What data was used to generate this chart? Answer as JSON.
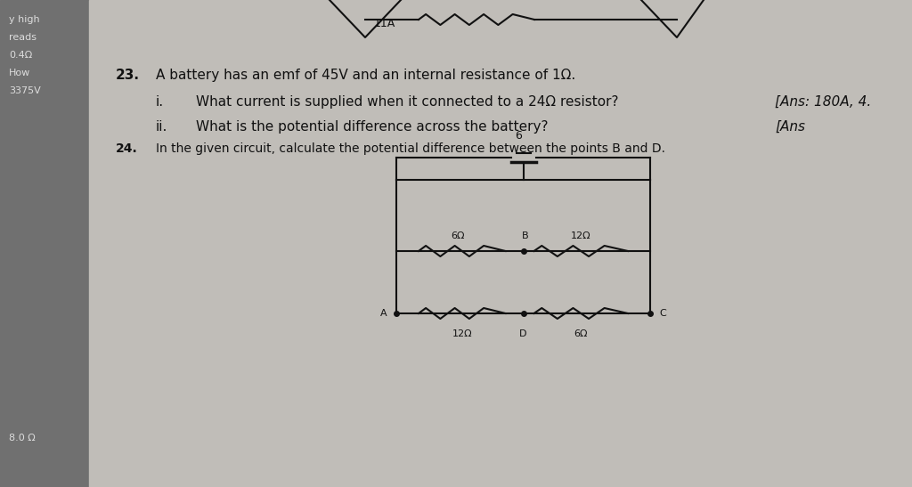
{
  "bg_color": "#b8b8b8",
  "left_bar_color": "#888888",
  "page_color": "#c8c4c0",
  "text_color": "#111111",
  "q23_label": "23.",
  "q23_text": "A battery has an emf of 45V and an internal resistance of 1Ω.",
  "q23_i_label": "i.",
  "q23_i_text": "What current is supplied when it connected to a 24Ω resistor?",
  "q23_ii_label": "ii.",
  "q23_ii_text": "What is the potential difference across the battery?",
  "q24_label": "24.",
  "q24_text": "In the given circuit, calculate the potential difference between the points B and D.",
  "ans_23": "[Ans: 180A, 4.",
  "ans_24": "[Ans",
  "left_labels": [
    "y high",
    "reads",
    "0.4Ω",
    "How",
    "3375V"
  ],
  "left_bottom": "8.0 Ω",
  "circuit_battery_label": "6",
  "circuit_r_top_left": "6Ω",
  "circuit_r_top_right": "12Ω",
  "circuit_r_bot_left": "12Ω",
  "circuit_r_bot_right": "6Ω",
  "circuit_node_A": "A",
  "circuit_node_B": "B",
  "circuit_node_C": "C",
  "circuit_node_D": "D"
}
